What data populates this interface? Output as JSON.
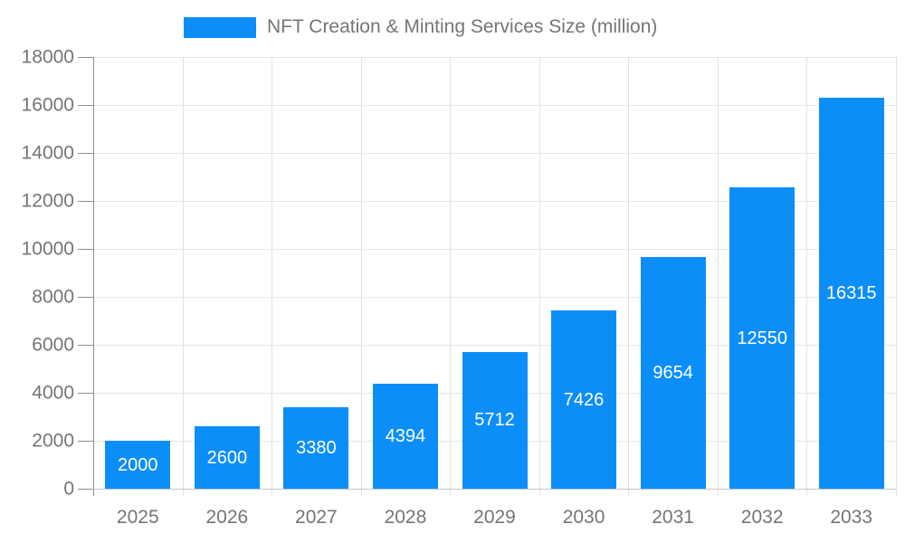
{
  "legend": {
    "label": "NFT Creation & Minting Services Size (million)"
  },
  "colors": {
    "bar": "#0c8ef9",
    "grid": "#e6e6e6",
    "axis": "#8f8f8f",
    "axis_bottom": "#c6c6c6",
    "tick_text": "#757575",
    "bar_label_text": "#ffffff",
    "background": "#ffffff"
  },
  "chart_data": {
    "type": "bar",
    "title": "NFT Creation & Minting Services Size (million)",
    "categories": [
      "2025",
      "2026",
      "2027",
      "2028",
      "2029",
      "2030",
      "2031",
      "2032",
      "2033"
    ],
    "values": [
      2000,
      2600,
      3380,
      4394,
      5712,
      7426,
      9654,
      12550,
      16315
    ],
    "series": [
      {
        "name": "NFT Creation & Minting Services Size (million)",
        "values": [
          2000,
          2600,
          3380,
          4394,
          5712,
          7426,
          9654,
          12550,
          16315
        ]
      }
    ],
    "xlabel": "",
    "ylabel": "",
    "ylim": [
      0,
      18000
    ],
    "yticks": [
      0,
      2000,
      4000,
      6000,
      8000,
      10000,
      12000,
      14000,
      16000,
      18000
    ],
    "grid": "both",
    "legend_position": "top",
    "bar_color": "#0c8ef9",
    "data_labels": "inside-center-white"
  }
}
